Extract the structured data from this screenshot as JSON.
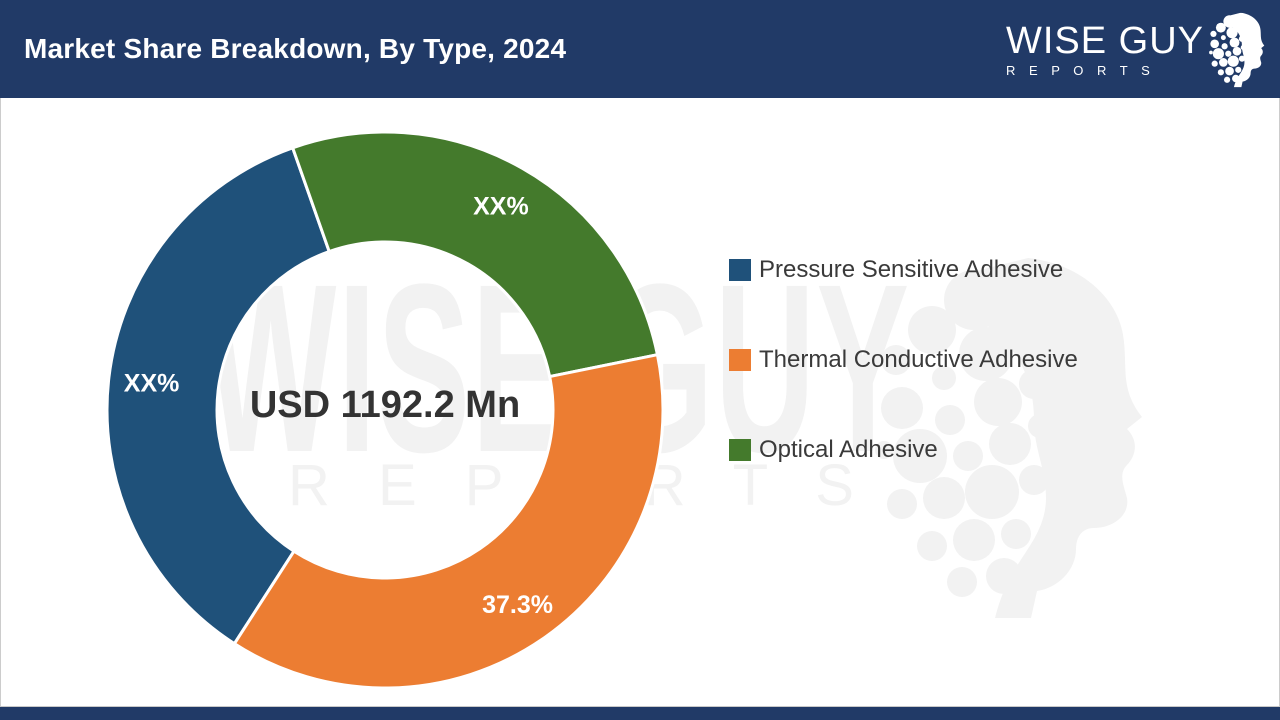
{
  "header": {
    "title": "Market Share Breakdown, By Type, 2024",
    "brand_line1": "WISE GUY",
    "brand_line2": "R E P O R T S",
    "bg_color": "#213a67"
  },
  "watermark": {
    "text_large": "WISE GUY",
    "text_small": "R E P O R T S"
  },
  "chart_data": {
    "type": "donut",
    "title": "Market Share Breakdown, By Type, 2024",
    "center_label": "USD 1192.2 Mn",
    "unit": "percent share",
    "segments": [
      {
        "label": "Pressure Sensitive Adhesive",
        "value_pct": 35.5,
        "display_label": "XX%",
        "color": "#1f517a"
      },
      {
        "label": "Thermal Conductive Adhesive",
        "value_pct": 37.3,
        "display_label": "37.3%",
        "color": "#ec7d32"
      },
      {
        "label": "Optical Adhesive",
        "value_pct": 27.2,
        "display_label": "XX%",
        "color": "#447a2c"
      }
    ],
    "start_angle_from_top_cw_deg": 212.8,
    "draw_order": [
      0,
      2,
      1
    ],
    "separator_color": "#ffffff",
    "legend_position": "right"
  },
  "footer": {
    "bg_color": "#213a67"
  }
}
